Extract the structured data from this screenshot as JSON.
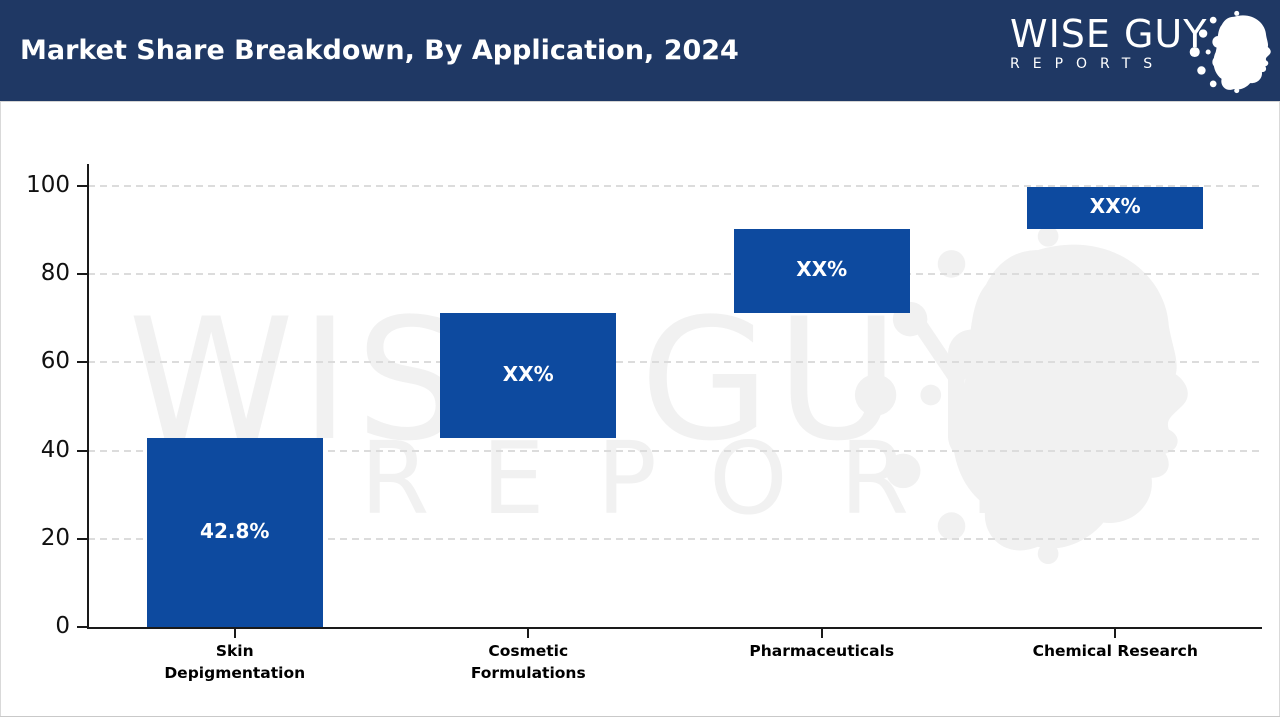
{
  "header": {
    "title": "Market Share Breakdown, By Application, 2024",
    "logo": {
      "brand_line1": "WISE GUY",
      "brand_line2": "REPORTS"
    }
  },
  "watermark": {
    "line1": "WISE GUY",
    "line2": "REPORTS"
  },
  "colors": {
    "header_bg": "#1f3864",
    "bar": "#0d4a9f",
    "gridline": "#dcdcdc",
    "axis": "#1a1a1a",
    "watermark": "#f1f1f1",
    "bar_label_text": "#ffffff"
  },
  "chart_data": {
    "type": "bar",
    "subtype": "waterfall",
    "title": "Market Share Breakdown, By Application, 2024",
    "categories": [
      "Skin Depigmentation",
      "Cosmetic Formulations",
      "Pharmaceuticals",
      "Chemical Research"
    ],
    "category_lines": [
      [
        "Skin",
        "Depigmentation"
      ],
      [
        "Cosmetic",
        "Formulations"
      ],
      [
        "Pharmaceuticals"
      ],
      [
        "Chemical Research"
      ]
    ],
    "segments": [
      {
        "category": "Skin Depigmentation",
        "label": "42.8%",
        "start": 0,
        "end": 42.8,
        "value": 42.8
      },
      {
        "category": "Cosmetic Formulations",
        "label": "XX%",
        "start": 42.8,
        "end": 71.2,
        "value": 28.4
      },
      {
        "category": "Pharmaceuticals",
        "label": "XX%",
        "start": 71.2,
        "end": 90.2,
        "value": 19.0
      },
      {
        "category": "Chemical Research",
        "label": "XX%",
        "start": 90.2,
        "end": 99.8,
        "value": 9.6
      }
    ],
    "y_ticks": [
      0,
      20,
      40,
      60,
      80,
      100
    ],
    "ylim": [
      0,
      105
    ],
    "grid": true,
    "legend": false,
    "xlabel": "",
    "ylabel": ""
  }
}
